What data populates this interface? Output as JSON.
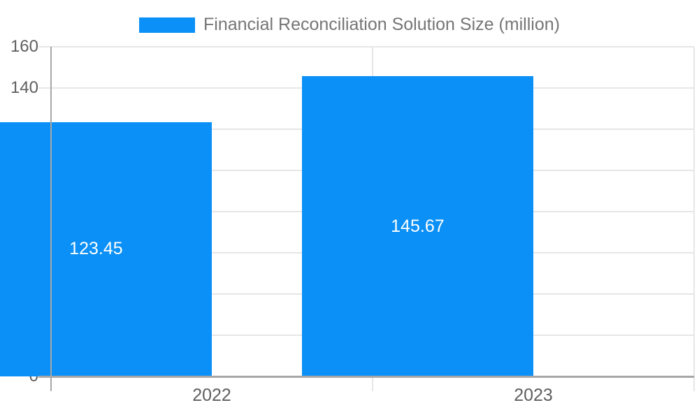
{
  "chart_data": {
    "type": "bar",
    "legend_label": "Financial Reconciliation Solution Size (million)",
    "legend_position": "top",
    "categories": [
      "2022",
      "2023"
    ],
    "series": [
      {
        "name": "Financial Reconciliation Solution Size (million)",
        "values": [
          123.45,
          145.67
        ],
        "value_labels": [
          "123.45",
          "145.67"
        ]
      }
    ],
    "title": "",
    "xlabel": "",
    "ylabel": "",
    "ylim": [
      0,
      160
    ],
    "yticks": [
      0,
      20,
      40,
      60,
      80,
      100,
      120,
      140,
      160
    ],
    "grid": true,
    "value_labels_inside_bars": true
  },
  "style": {
    "bar_color": "#0a90f6",
    "grid_color": "#e6e6e6",
    "axis_color": "#a6a6a6",
    "tick_label_color": "#5f5f5f",
    "legend_text_color": "#757575",
    "value_label_color": "#ffffff",
    "background": "#ffffff"
  }
}
